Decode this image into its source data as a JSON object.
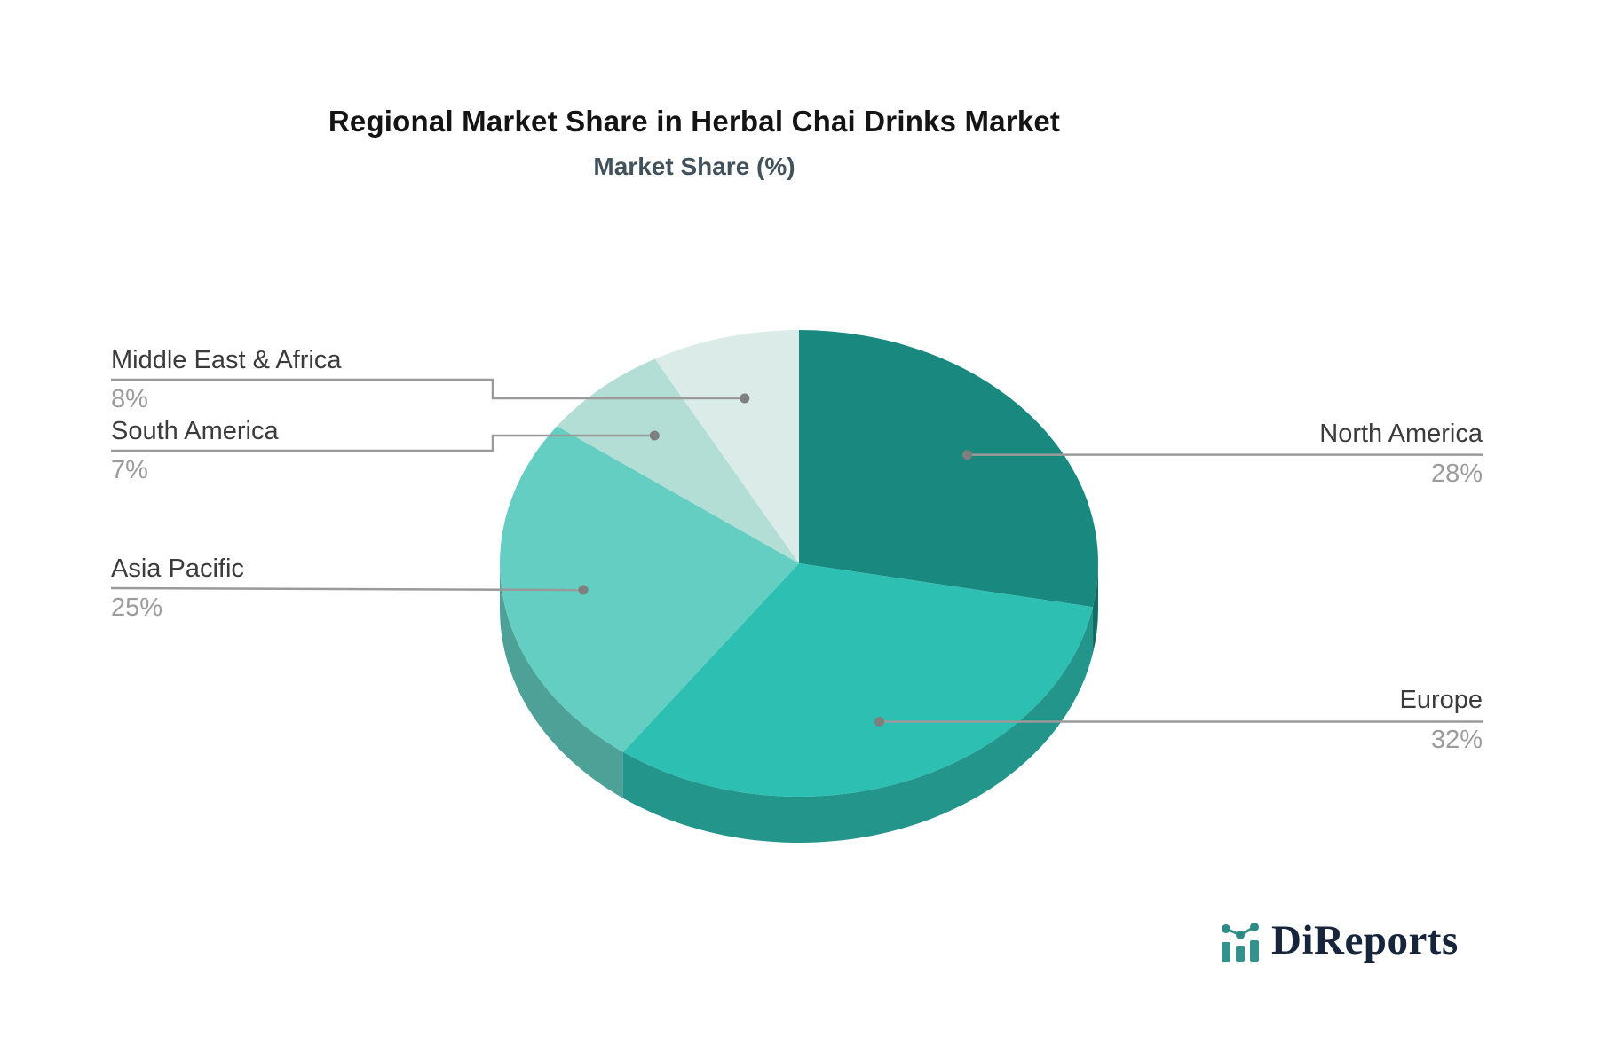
{
  "title": "Regional Market Share in Herbal Chai Drinks Market",
  "subtitle": "Market Share (%)",
  "logo": {
    "text": "DiReports",
    "icon": "bar-line-chart-icon"
  },
  "chart_data": {
    "type": "pie",
    "title": "Regional Market Share in Herbal Chai Drinks Market",
    "subtitle": "Market Share (%)",
    "unit": "%",
    "effect": "3d",
    "direction": "clockwise",
    "start_angle_deg": 0,
    "legend_position": "callout-labels",
    "leader_line_color": "#9a9a9a",
    "label_color": "#3b3b3b",
    "value_color": "#9b9b9b",
    "segments": [
      {
        "label": "North America",
        "value": 28,
        "display": "28%",
        "color": "#19897f",
        "label_side": "right"
      },
      {
        "label": "Europe",
        "value": 32,
        "display": "32%",
        "color": "#2dbfb2",
        "label_side": "right"
      },
      {
        "label": "Asia Pacific",
        "value": 25,
        "display": "25%",
        "color": "#63cec1",
        "label_side": "left"
      },
      {
        "label": "South America",
        "value": 7,
        "display": "7%",
        "color": "#b3ded6",
        "label_side": "left"
      },
      {
        "label": "Middle East & Africa",
        "value": 8,
        "display": "8%",
        "color": "#dbece8",
        "label_side": "left"
      }
    ]
  }
}
